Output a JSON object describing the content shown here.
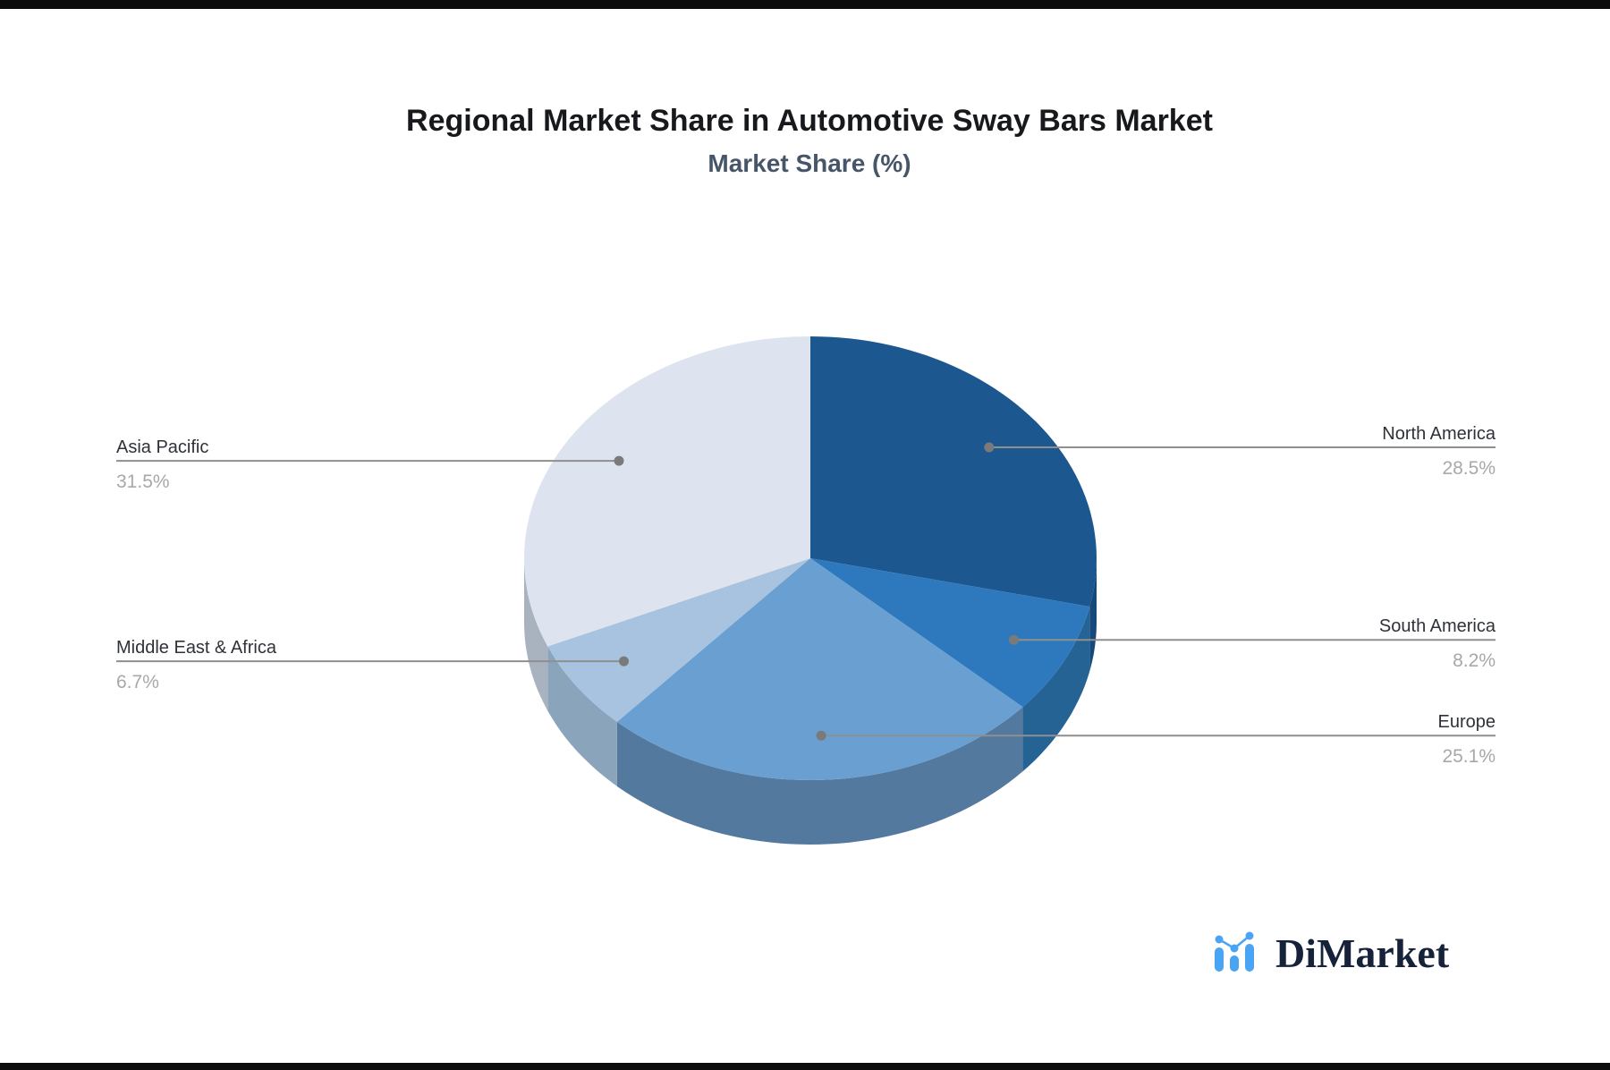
{
  "page": {
    "title": "Regional Market Share in Automotive Sway Bars Market",
    "subtitle": "Market Share (%)"
  },
  "chart_data": {
    "type": "pie",
    "title": "Regional Market Share in Automotive Sway Bars Market",
    "subtitle": "Market Share (%)",
    "unit": "%",
    "start_angle": "top",
    "direction": "clockwise",
    "style": "3d-depth",
    "legend_position": "none",
    "categories": [
      "North America",
      "South America",
      "Europe",
      "Middle East & Africa",
      "Asia Pacific"
    ],
    "values": [
      28.5,
      8.2,
      25.1,
      6.7,
      31.5
    ],
    "colors": [
      "#1c578f",
      "#2e79bd",
      "#6a9fd2",
      "#a7c3df",
      "#dde4ef"
    ],
    "side_colors": [
      "#16497a",
      "#266395",
      "#54799e",
      "#8aa4bc",
      "#a9b3bf"
    ],
    "labels": [
      {
        "category": "North America",
        "text": "North America",
        "value_label": "28.5%",
        "side": "right"
      },
      {
        "category": "South America",
        "text": "South America",
        "value_label": "8.2%",
        "side": "right"
      },
      {
        "category": "Europe",
        "text": "Europe",
        "value_label": "25.1%",
        "side": "right"
      },
      {
        "category": "Asia Pacific",
        "text": "Asia Pacific",
        "value_label": "31.5%",
        "side": "left"
      },
      {
        "category": "Middle East & Africa",
        "text": "Middle East & Africa",
        "value_label": "6.7%",
        "side": "left"
      }
    ],
    "leader_line_color": "#8f8f8f",
    "leader_dot_color": "#7a7a7a",
    "label_text_color": "#2e3238",
    "value_text_color": "#a8a8a8"
  },
  "logo": {
    "text": "DiMarket",
    "icon": "bar-chart-logo-icon",
    "icon_color": "#4aa4f4",
    "text_color": "#16223a"
  }
}
